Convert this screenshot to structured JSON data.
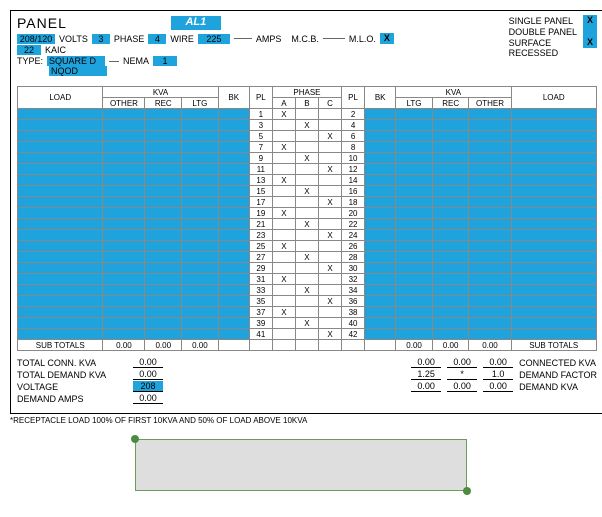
{
  "panel": {
    "title": "PANEL",
    "panel_id": "AL1",
    "voltage": "208/120",
    "voltage_label": "VOLTS",
    "phase": "3",
    "phase_label": "PHASE",
    "wire": "4",
    "wire_label": "WIRE",
    "amps": "225",
    "amps_label": "AMPS",
    "mcb_label": "M.C.B.",
    "mlo_label": "M.L.O.",
    "mlo_chk": "X",
    "kaic": "22",
    "kaic_label": "KAIC",
    "type_label": "TYPE:",
    "type_mfr": "SQUARE D",
    "type_nema_label": "NEMA",
    "type_nema": "1",
    "type_model": "NQOD"
  },
  "options": {
    "single": "SINGLE PANEL",
    "single_chk": "X",
    "double": "DOUBLE PANEL",
    "surface": "SURFACE",
    "surface_chk": "X",
    "recessed": "RECESSED"
  },
  "headers": {
    "load": "LOAD",
    "kva": "KVA",
    "phase": "PHASE",
    "other": "OTHER",
    "rec": "REC",
    "ltg": "LTG",
    "bk": "BK",
    "pl": "PL",
    "a": "A",
    "b": "B",
    "c": "C",
    "subtotals": "SUB TOTALS"
  },
  "circuits": [
    {
      "l": 1,
      "a": "X",
      "b": "",
      "c": "",
      "r": 2
    },
    {
      "l": 3,
      "a": "",
      "b": "X",
      "c": "",
      "r": 4
    },
    {
      "l": 5,
      "a": "",
      "b": "",
      "c": "X",
      "r": 6
    },
    {
      "l": 7,
      "a": "X",
      "b": "",
      "c": "",
      "r": 8
    },
    {
      "l": 9,
      "a": "",
      "b": "X",
      "c": "",
      "r": 10
    },
    {
      "l": 11,
      "a": "",
      "b": "",
      "c": "X",
      "r": 12
    },
    {
      "l": 13,
      "a": "X",
      "b": "",
      "c": "",
      "r": 14
    },
    {
      "l": 15,
      "a": "",
      "b": "X",
      "c": "",
      "r": 16
    },
    {
      "l": 17,
      "a": "",
      "b": "",
      "c": "X",
      "r": 18
    },
    {
      "l": 19,
      "a": "X",
      "b": "",
      "c": "",
      "r": 20
    },
    {
      "l": 21,
      "a": "",
      "b": "X",
      "c": "",
      "r": 22
    },
    {
      "l": 23,
      "a": "",
      "b": "",
      "c": "X",
      "r": 24
    },
    {
      "l": 25,
      "a": "X",
      "b": "",
      "c": "",
      "r": 26
    },
    {
      "l": 27,
      "a": "",
      "b": "X",
      "c": "",
      "r": 28
    },
    {
      "l": 29,
      "a": "",
      "b": "",
      "c": "X",
      "r": 30
    },
    {
      "l": 31,
      "a": "X",
      "b": "",
      "c": "",
      "r": 32
    },
    {
      "l": 33,
      "a": "",
      "b": "X",
      "c": "",
      "r": 34
    },
    {
      "l": 35,
      "a": "",
      "b": "",
      "c": "X",
      "r": 36
    },
    {
      "l": 37,
      "a": "X",
      "b": "",
      "c": "",
      "r": 38
    },
    {
      "l": 39,
      "a": "",
      "b": "X",
      "c": "",
      "r": 40
    },
    {
      "l": 41,
      "a": "",
      "b": "",
      "c": "X",
      "r": 42
    }
  ],
  "subtotals": {
    "left": {
      "other": "0.00",
      "rec": "0.00",
      "ltg": "0.00"
    },
    "right": {
      "ltg": "0.00",
      "rec": "0.00",
      "other": "0.00"
    }
  },
  "totals": {
    "conn_kva_label": "TOTAL CONN. KVA",
    "conn_kva": "0.00",
    "demand_kva_label": "TOTAL DEMAND KVA",
    "demand_kva": "0.00",
    "voltage_label": "VOLTAGE",
    "voltage": "208",
    "demand_amps_label": "DEMAND AMPS",
    "demand_amps": "0.00",
    "connected_kva_label": "CONNECTED KVA",
    "connected": {
      "a": "0.00",
      "b": "0.00",
      "c": "0.00"
    },
    "demand_factor_label": "DEMAND FACTOR",
    "factor": {
      "a": "1.25",
      "b": "*",
      "c": "1.0"
    },
    "demand_kva2_label": "DEMAND KVA",
    "demand2": {
      "a": "0.00",
      "b": "0.00",
      "c": "0.00"
    }
  },
  "note": "*RECEPTACLE LOAD 100% OF FIRST 10KVA AND 50% OF LOAD ABOVE 10KVA",
  "colors": {
    "blue": "#1fa3dc",
    "border": "#888888"
  }
}
